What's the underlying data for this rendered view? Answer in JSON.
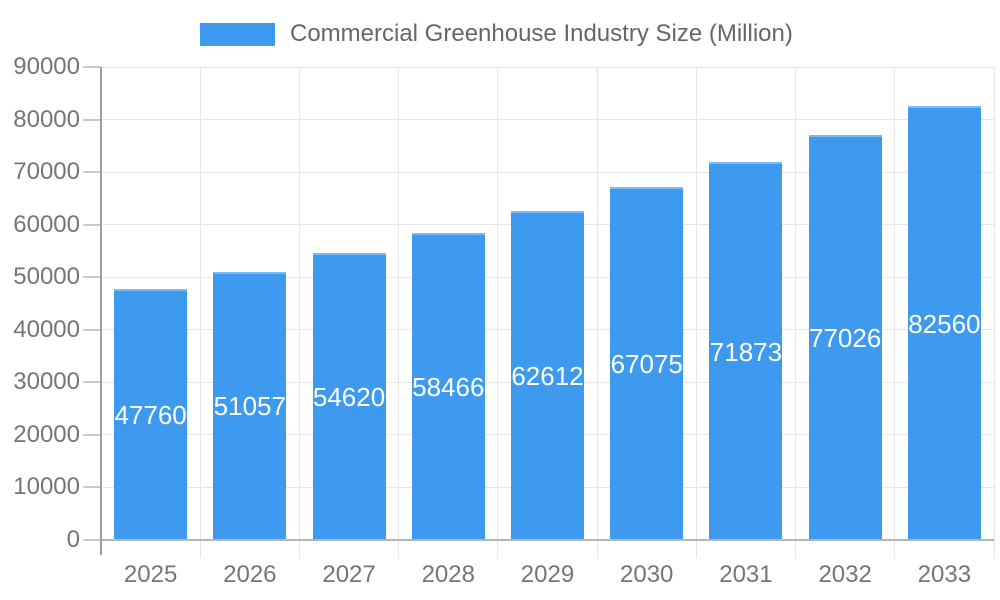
{
  "chart_data": {
    "type": "bar",
    "title": "Commercial Greenhouse Industry Size (Million)",
    "legend_position": "top",
    "categories": [
      "2025",
      "2026",
      "2027",
      "2028",
      "2029",
      "2030",
      "2031",
      "2032",
      "2033"
    ],
    "values": [
      47760,
      51057,
      54620,
      58466,
      62612,
      67075,
      71873,
      77026,
      82560
    ],
    "value_labels": [
      "47760",
      "51057",
      "54620",
      "58466",
      "62612",
      "67075",
      "71873",
      "77026",
      "82560"
    ],
    "xlabel": "",
    "ylabel": "",
    "ylim": [
      0,
      90000
    ],
    "y_ticks": [
      "0",
      "10000",
      "20000",
      "30000",
      "40000",
      "50000",
      "60000",
      "70000",
      "80000",
      "90000"
    ],
    "grid": true
  },
  "colors": {
    "background": "#ffffff",
    "bar": "#3e9aee",
    "bar_edge": "#7db9f2",
    "grid": "#e6e6e6",
    "axis": "#9e9e9e",
    "baseline": "#b5b5b5",
    "tick": "#c9c9c9",
    "axis_text": "#757575",
    "legend_text": "#666666",
    "value_text": "#ffffff"
  }
}
